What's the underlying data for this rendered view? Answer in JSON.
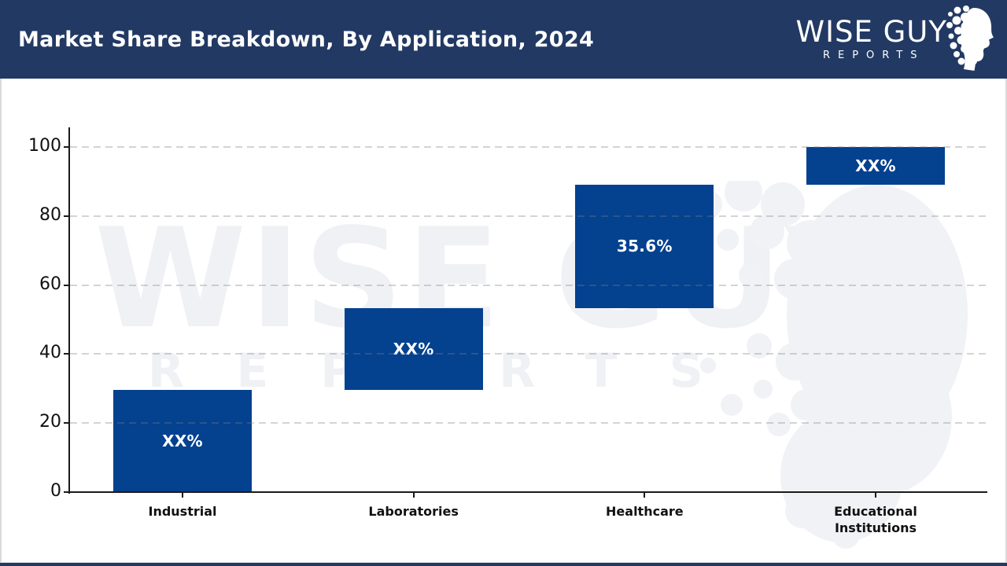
{
  "header": {
    "title": "Market Share Breakdown, By Application, 2024",
    "logo_line1": "WISE GUY",
    "logo_line2": "REPORTS"
  },
  "watermark": {
    "line1": "WISE GUY",
    "line2": "REPORTS"
  },
  "colors": {
    "header_bg": "#223963",
    "bar_blue": "#04418f",
    "gridline_gray": "#dedede",
    "watermark_gray": "#f0f1f4",
    "axis_black": "#1a1a1a"
  },
  "chart_data": {
    "type": "bar",
    "subtype": "floating-waterfall",
    "title": "Market Share Breakdown, By Application, 2024",
    "categories": [
      "Industrial",
      "Laboratories",
      "Healthcare",
      "Educational Institutions"
    ],
    "segments": [
      {
        "category": "Industrial",
        "start": 0,
        "end": 29.7,
        "label": "XX%"
      },
      {
        "category": "Laboratories",
        "start": 29.7,
        "end": 53.4,
        "label": "XX%"
      },
      {
        "category": "Healthcare",
        "start": 53.4,
        "end": 89.0,
        "label": "35.6%"
      },
      {
        "category": "Educational Institutions",
        "start": 89.0,
        "end": 100,
        "label": "XX%"
      }
    ],
    "y_ticks": [
      0,
      20,
      40,
      60,
      80,
      100
    ],
    "ylim": [
      0,
      105
    ],
    "xlabel": "",
    "ylabel": "",
    "grid": "horizontal-dashed",
    "legend": "none",
    "bar_color": "#04418f",
    "value_label_color": "#ffffff"
  }
}
